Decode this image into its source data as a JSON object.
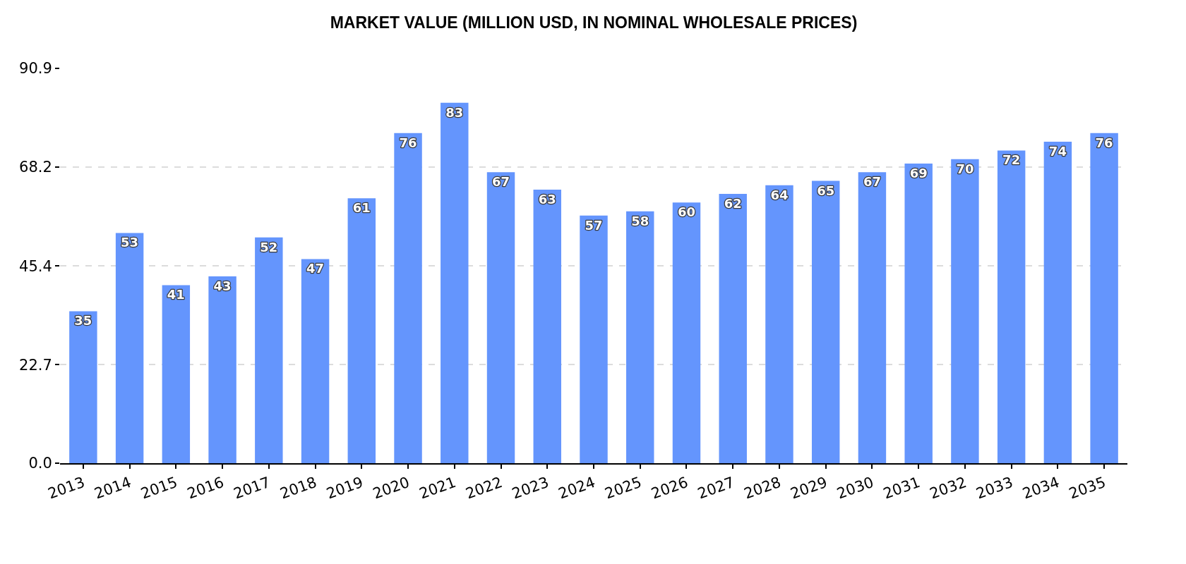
{
  "chart_data": {
    "type": "bar",
    "title": "MARKET VALUE (MILLION USD, IN NOMINAL WHOLESALE PRICES)",
    "categories": [
      "2013",
      "2014",
      "2015",
      "2016",
      "2017",
      "2018",
      "2019",
      "2020",
      "2021",
      "2022",
      "2023",
      "2024",
      "2025",
      "2026",
      "2027",
      "2028",
      "2029",
      "2030",
      "2031",
      "2032",
      "2033",
      "2034",
      "2035"
    ],
    "values": [
      35,
      53,
      41,
      43,
      52,
      47,
      61,
      76,
      83,
      67,
      63,
      57,
      58,
      60,
      62,
      64,
      65,
      67,
      69,
      70,
      72,
      74,
      76
    ],
    "color": "#6495fd",
    "ylim": [
      0,
      90.9
    ],
    "yticks": [
      {
        "value": 0,
        "label": "0.0"
      },
      22.7,
      45.4,
      68.2,
      90.9
    ],
    "grid": "y",
    "data_labels": true
  }
}
